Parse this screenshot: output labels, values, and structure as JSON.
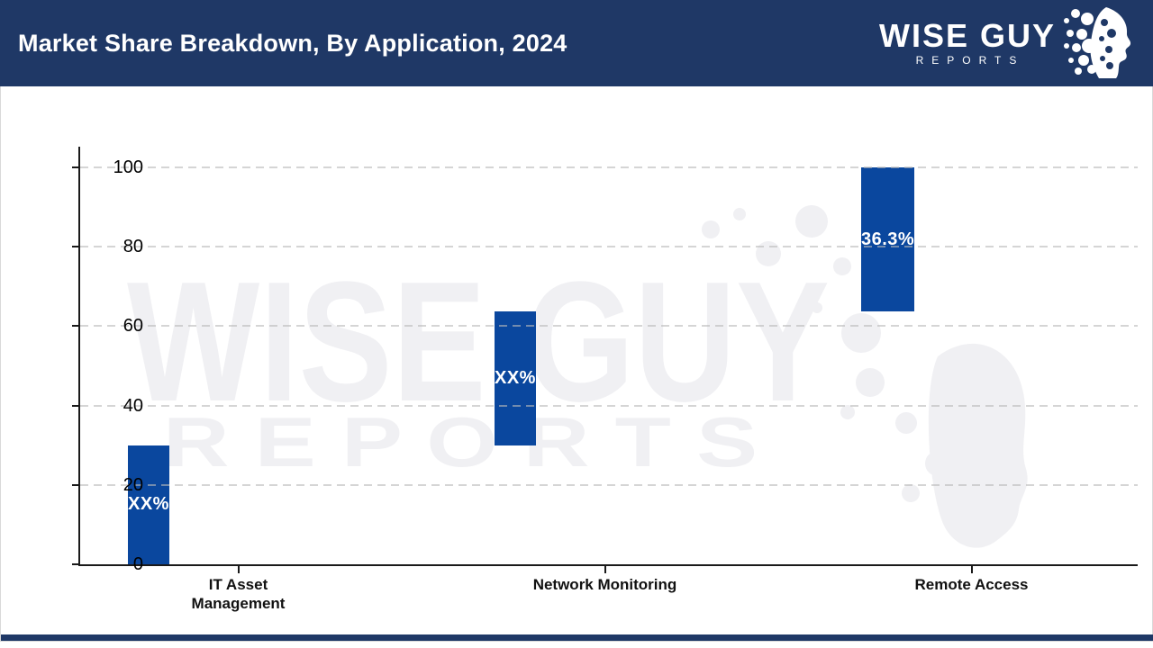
{
  "header": {
    "title": "Market Share Breakdown, By Application, 2024",
    "logo": {
      "line1": "WISE GUY",
      "line2": "REPORTS"
    }
  },
  "watermark": {
    "line1": "WISE GUY",
    "line2": "R E P O R T S"
  },
  "colors": {
    "header_bg": "#1f3866",
    "footer_bg": "#1f3866",
    "bar": "#0a479e",
    "bar_label": "#ffffff",
    "gridline": "#c9c9c9",
    "watermark": "#f0f0f3"
  },
  "chart_data": {
    "type": "bar",
    "subtype": "waterfall-stacked-segments",
    "title": "Market Share Breakdown, By Application, 2024",
    "categories": [
      "IT Asset Management",
      "Network Monitoring",
      "Remote Access"
    ],
    "segments": [
      {
        "category": "IT Asset Management",
        "start": 0,
        "end": 30,
        "label": "XX%"
      },
      {
        "category": "Network Monitoring",
        "start": 30,
        "end": 63.7,
        "label": "XX%"
      },
      {
        "category": "Remote Access",
        "start": 63.7,
        "end": 100,
        "label": "36.3%"
      }
    ],
    "xlabel": "",
    "ylabel": "",
    "yticks": [
      0,
      20,
      40,
      60,
      80,
      100
    ],
    "ylim": [
      0,
      100
    ],
    "grid": "dashed-horizontal-on-top",
    "legend": "none"
  }
}
